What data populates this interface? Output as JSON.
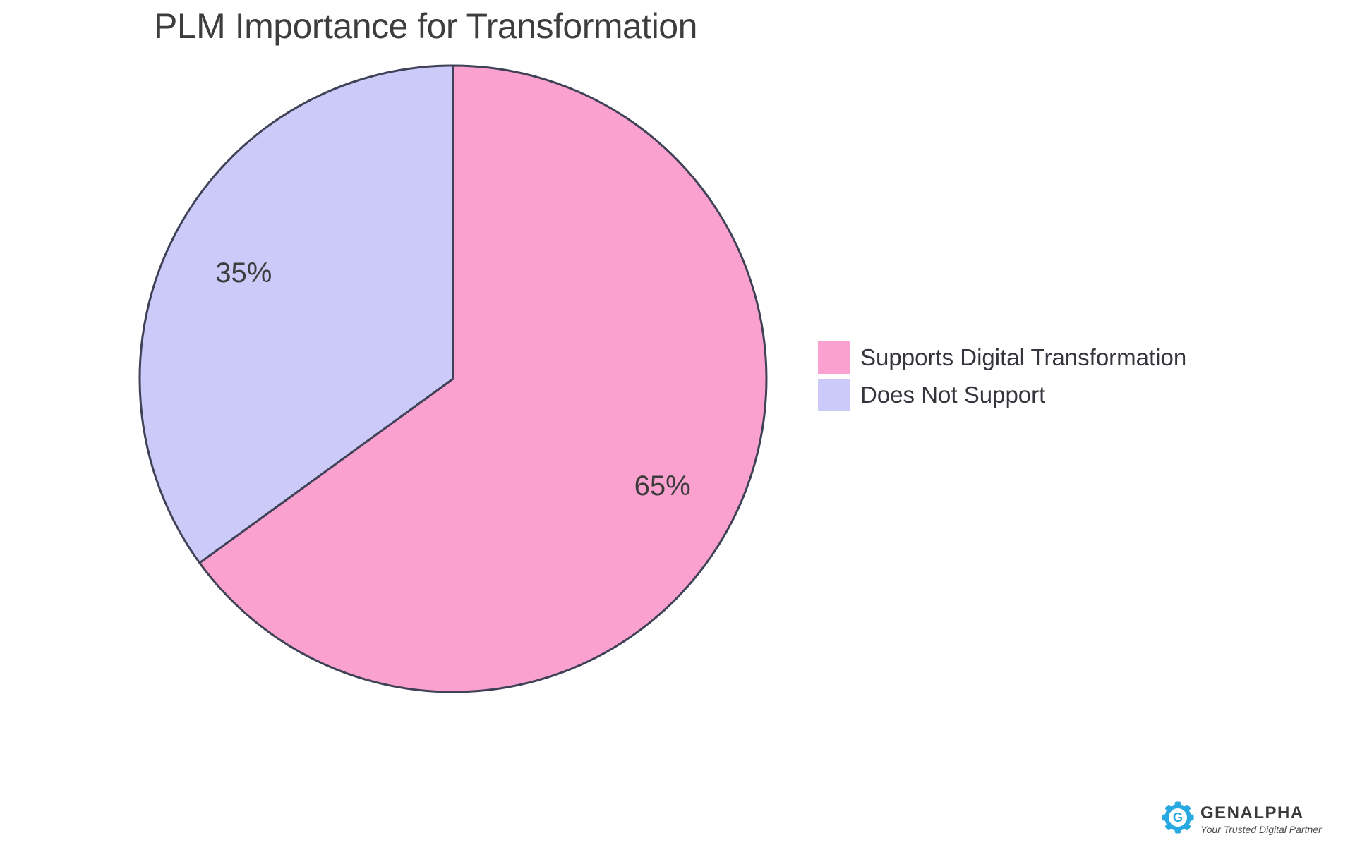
{
  "title": "PLM Importance for Transformation",
  "chart_data": {
    "type": "pie",
    "title": "PLM Importance for Transformation",
    "labels": [
      "Supports Digital Transformation",
      "Does Not Support"
    ],
    "values": [
      65,
      35
    ],
    "slice_labels": [
      "65%",
      "35%"
    ],
    "colors": [
      "#FAA1D0",
      "#CBCAF8"
    ],
    "border_color": "#3F4257",
    "start_angle_deg": 0,
    "direction": "clockwise",
    "legend_position": "right",
    "label_text_color": "#3C3C3C"
  },
  "legend": {
    "items": [
      {
        "label": "Supports Digital Transformation",
        "color": "#FAA1D0"
      },
      {
        "label": "Does Not Support",
        "color": "#CBCAF8"
      }
    ]
  },
  "logo": {
    "brand": "GENALPHA",
    "tagline": "Your Trusted Digital Partner",
    "gear_color": "#29A9E1"
  }
}
